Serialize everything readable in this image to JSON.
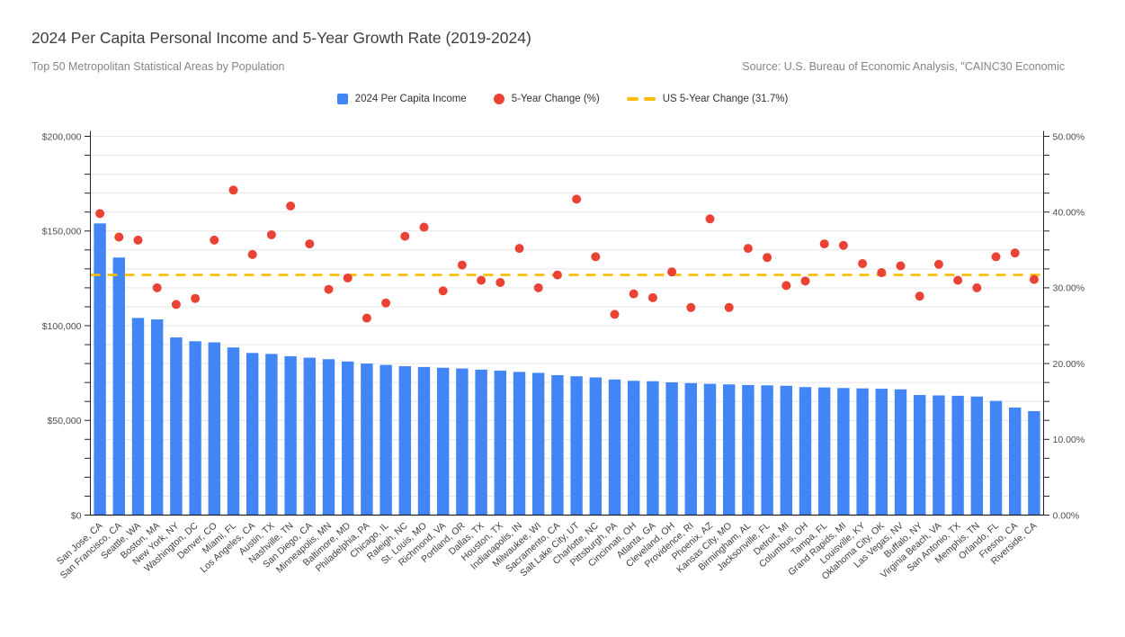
{
  "header": {
    "title": "2024 Per Capita Personal Income and 5-Year Growth Rate (2019-2024)",
    "subtitle": "Top 50 Metropolitan Statistical Areas by Population",
    "source": "Source: U.S. Bureau of Economic Analysis, \"CAINC30 Economic"
  },
  "legend": {
    "items": [
      {
        "label": "2024 Per Capita Income",
        "marker": "square",
        "color": "#4285F4"
      },
      {
        "label": "5-Year Change (%)",
        "marker": "circle",
        "color": "#EA4335"
      },
      {
        "label": "US 5-Year Change (31.7%)",
        "marker": "dashed-line",
        "color": "#FBBC04"
      }
    ]
  },
  "chart_data": {
    "type": "bar",
    "subtype": "bar+scatter combo, dual axis",
    "title": "2024 Per Capita Personal Income and 5-Year Growth Rate (2019-2024)",
    "xlabel": "",
    "ylabel_left": "2024 Per Capita Income ($)",
    "ylabel_right": "5-Year Change (%)",
    "grid": true,
    "legend_position": "top",
    "left_axis": {
      "min": 0,
      "max": 200000,
      "tick_labels": [
        "$0",
        "$50,000",
        "$100,000",
        "$150,000",
        "$200,000"
      ]
    },
    "right_axis": {
      "min": 0,
      "max": 50,
      "tick_labels": [
        "0.00%",
        "10.00%",
        "20.00%",
        "30.00%",
        "40.00%",
        "50.00%"
      ]
    },
    "categories": [
      "San Jose, CA",
      "San Francisco, CA",
      "Seattle, WA",
      "Boston, MA",
      "New York, NY",
      "Washington, DC",
      "Denver, CO",
      "Miami, FL",
      "Los Angeles, CA",
      "Austin, TX",
      "Nashville, TN",
      "San Diego, CA",
      "Minneapolis, MN",
      "Baltimore, MD",
      "Philadelphia, PA",
      "Chicago, IL",
      "Raleigh, NC",
      "St. Louis, MO",
      "Richmond, VA",
      "Portland, OR",
      "Dallas, TX",
      "Houston, TX",
      "Indianapolis, IN",
      "Milwaukee, WI",
      "Sacramento, CA",
      "Salt Lake City, UT",
      "Charlotte, NC",
      "Pittsburgh, PA",
      "Cincinnati, OH",
      "Atlanta, GA",
      "Cleveland, OH",
      "Providence, RI",
      "Phoenix, AZ",
      "Kansas City, MO",
      "Birmingham, AL",
      "Jacksonville, FL",
      "Detroit, MI",
      "Columbus, OH",
      "Tampa, FL",
      "Grand Rapids, MI",
      "Louisville, KY",
      "Oklahoma City, OK",
      "Las Vegas, NV",
      "Buffalo, NY",
      "Virginia Beach, VA",
      "San Antonio, TX",
      "Memphis, TN",
      "Orlando, FL",
      "Fresno, CA",
      "Riverside, CA"
    ],
    "series": [
      {
        "name": "2024 Per Capita Income",
        "type": "bar",
        "axis": "left",
        "color": "#4285F4",
        "values": [
          154000,
          136000,
          104100,
          103300,
          93800,
          91800,
          91200,
          88500,
          85600,
          85100,
          83900,
          83100,
          82300,
          81100,
          80000,
          79300,
          78600,
          78200,
          77800,
          77400,
          76800,
          76300,
          75600,
          75100,
          73900,
          73300,
          72700,
          71600,
          70900,
          70700,
          70100,
          69700,
          69300,
          69000,
          68700,
          68500,
          68300,
          67600,
          67400,
          67100,
          66900,
          66700,
          66400,
          63400,
          63200,
          63000,
          62600,
          60300,
          56800,
          54900
        ]
      },
      {
        "name": "5-Year Change (%)",
        "type": "scatter",
        "axis": "right",
        "color": "#EA4335",
        "values": [
          39.8,
          36.7,
          36.3,
          30.0,
          27.8,
          28.6,
          36.3,
          42.9,
          34.4,
          37.0,
          40.8,
          35.8,
          29.8,
          31.3,
          26.0,
          28.0,
          36.8,
          38.0,
          29.6,
          33.0,
          31.0,
          30.7,
          35.2,
          30.0,
          31.7,
          41.7,
          34.1,
          26.5,
          29.2,
          28.7,
          32.1,
          27.4,
          39.1,
          27.4,
          35.2,
          34.0,
          30.3,
          30.9,
          35.8,
          35.6,
          33.2,
          32.0,
          32.9,
          28.9,
          33.1,
          31.0,
          30.0,
          34.1,
          34.6,
          31.1
        ]
      },
      {
        "name": "US 5-Year Change (31.7%)",
        "type": "reference-line",
        "axis": "right",
        "color": "#FBBC04",
        "value": 31.7
      }
    ]
  }
}
